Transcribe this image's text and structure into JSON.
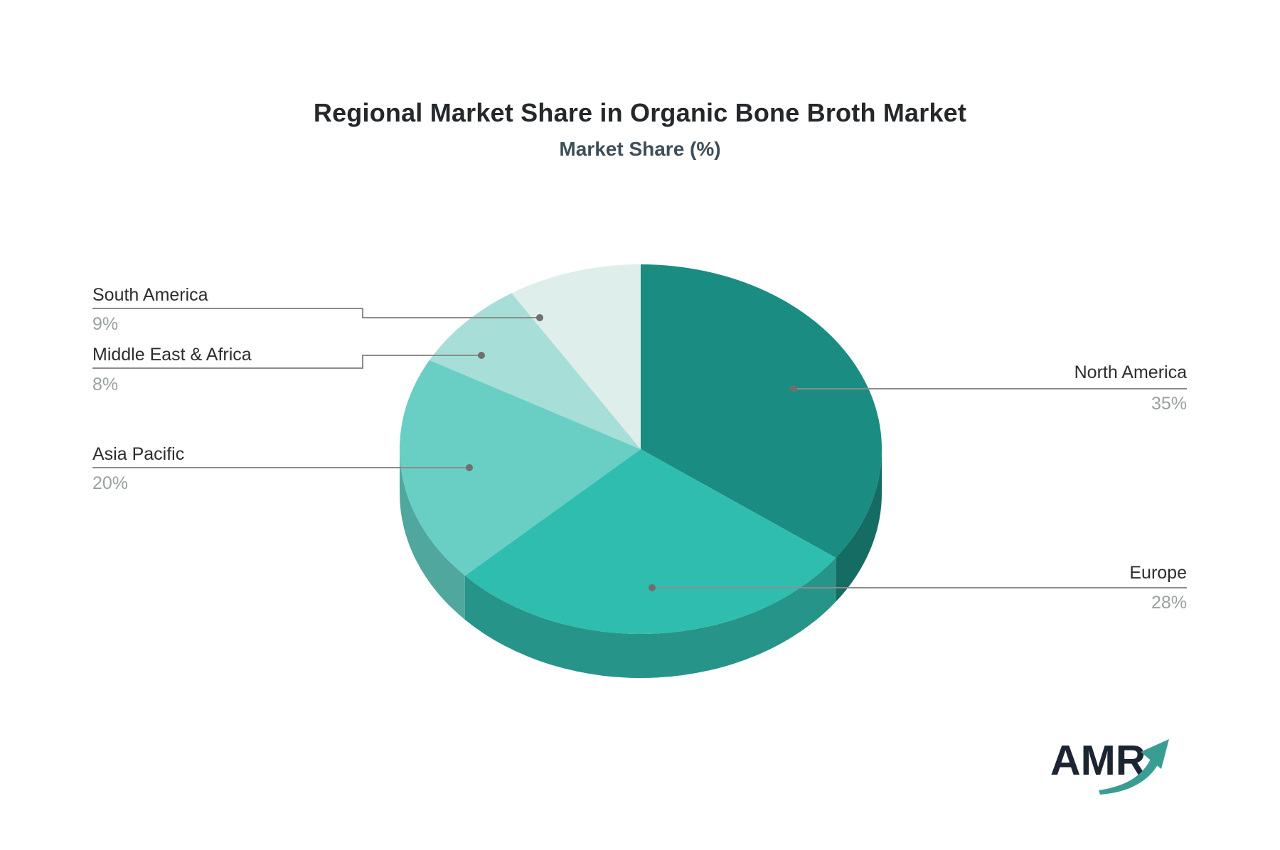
{
  "chart_data": {
    "type": "pie",
    "style": "3d",
    "title": "Regional Market Share in Organic Bone Broth Market",
    "subtitle": "Market Share (%)",
    "unit": "%",
    "start_angle": "12 o'clock, clockwise",
    "slices": [
      {
        "label": "North America",
        "value": 35,
        "display_value": "35%",
        "color": "#1A8C81",
        "side_color": "#156C63",
        "label_side": "right"
      },
      {
        "label": "Europe",
        "value": 28,
        "display_value": "28%",
        "color": "#2FBDAF",
        "side_color": "#27948A",
        "label_side": "right"
      },
      {
        "label": "Asia Pacific",
        "value": 20,
        "display_value": "20%",
        "color": "#69CFC5",
        "side_color": "#4FA79D",
        "label_side": "left"
      },
      {
        "label": "Middle East & Africa",
        "value": 8,
        "display_value": "8%",
        "color": "#A7DED7",
        "side_color": "#7FBDB5",
        "label_side": "left"
      },
      {
        "label": "South America",
        "value": 9,
        "display_value": "9%",
        "color": "#DEEEEB",
        "side_color": "#B8D6D1",
        "label_side": "left"
      }
    ],
    "legend": "none",
    "leader_line_color": "#8C8C8C",
    "leader_dot_color": "#6F6F6F",
    "label_color": "#2D2D2D",
    "value_color": "#9AA0A0"
  },
  "logo": {
    "text": "AMR",
    "accent_color": "#3A9D94"
  }
}
